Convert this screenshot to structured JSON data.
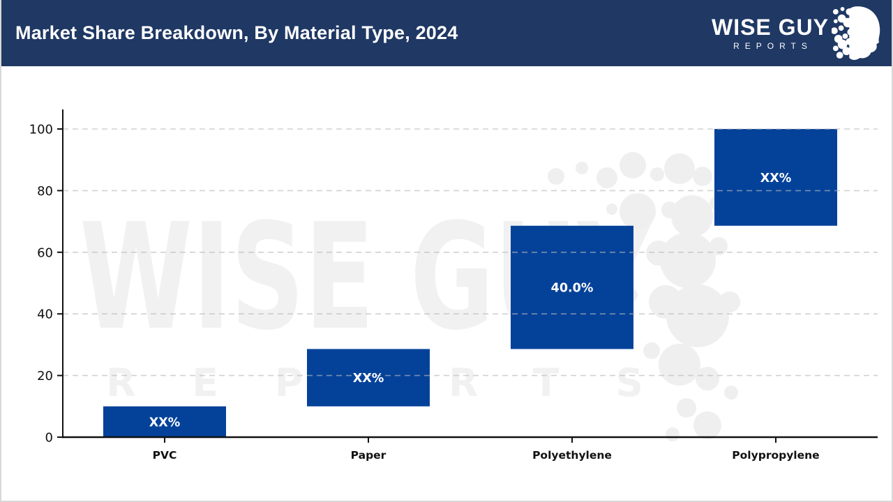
{
  "header": {
    "title": "Market Share Breakdown, By Material Type, 2024",
    "logo": {
      "line1": "WISE GUY",
      "line2": "REPORTS"
    }
  },
  "watermark": {
    "line1": "WISE GUY",
    "line2": "REPORTS"
  },
  "colors": {
    "header_bg": "#1f3864",
    "bar": "#04429a",
    "bar_label": "#ffffff",
    "axis": "#111111",
    "watermark": "#f1f1f1"
  },
  "chart_data": {
    "type": "bar",
    "variant": "waterfall",
    "title": "Market Share Breakdown, By Material Type, 2024",
    "categories": [
      "PVC",
      "Paper",
      "Polyethylene",
      "Polypropylene"
    ],
    "segments": [
      {
        "category": "PVC",
        "start": 0,
        "end": 10,
        "value_label": "XX%"
      },
      {
        "category": "Paper",
        "start": 10,
        "end": 28.6,
        "value_label": "XX%"
      },
      {
        "category": "Polyethylene",
        "start": 28.6,
        "end": 68.6,
        "value_label": "40.0%"
      },
      {
        "category": "Polypropylene",
        "start": 68.6,
        "end": 100,
        "value_label": "XX%"
      }
    ],
    "yticks": [
      0,
      20,
      40,
      60,
      80,
      100
    ],
    "ylim": [
      0,
      106
    ],
    "xlabel": "",
    "ylabel": "",
    "grid": "horizontal-dashed",
    "legend": "none",
    "bar_color": "#04429a",
    "label_color": "#ffffff"
  }
}
